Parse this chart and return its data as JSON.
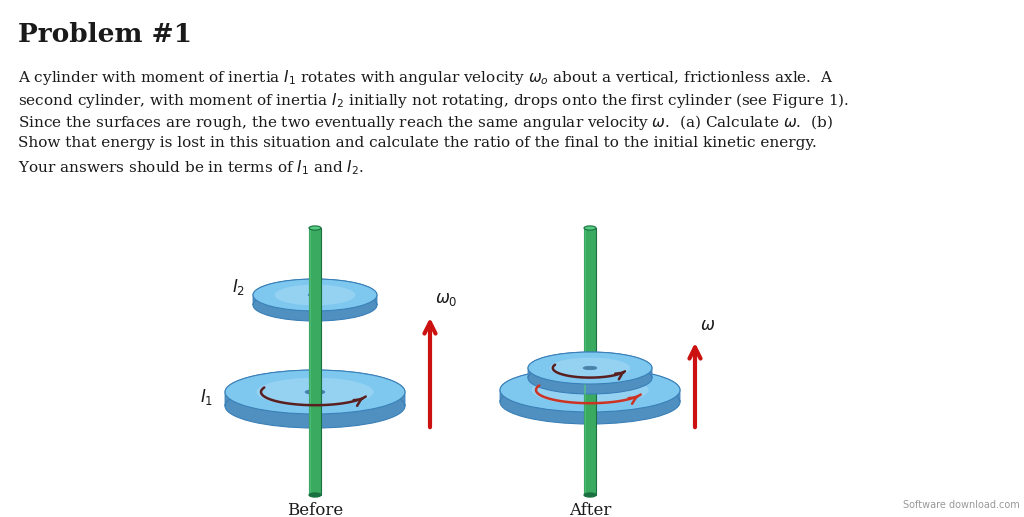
{
  "title": "Problem #1",
  "background": "#ffffff",
  "text_color": "#1a1a1a",
  "before_label": "Before",
  "after_label": "After",
  "axle_color_main": "#3aaa60",
  "axle_color_dark": "#1a7040",
  "axle_color_light": "#55cc80",
  "disk_face_color": "#7ec8f0",
  "disk_face_color2": "#a8d8f0",
  "disk_edge_color": "#3a80b8",
  "disk_side_color": "#5090c0",
  "disk_shadow": "#2a6090",
  "arrow_color": "#cc1111",
  "rot_arrow_dark": "#5a2020",
  "rot_arrow_red": "#cc3322",
  "label_I1": "$I_1$",
  "label_I2": "$I_2$",
  "label_omega0": "$\\omega_0$",
  "label_omega": "$\\omega$",
  "paragraph_lines": [
    "A cylinder with moment of inertia $I_1$ rotates with angular velocity $\\omega_o$ about a vertical, frictionless axle.  A",
    "second cylinder, with moment of inertia $I_2$ initially not rotating, drops onto the first cylinder (see Figure 1).",
    "Since the surfaces are rough, the two eventually reach the same angular velocity $\\omega$.  (a) Calculate $\\omega$.  (b)",
    "Show that energy is lost in this situation and calculate the ratio of the final to the initial kinetic energy.",
    "Your answers should be in terms of $I_1$ and $I_2$."
  ]
}
